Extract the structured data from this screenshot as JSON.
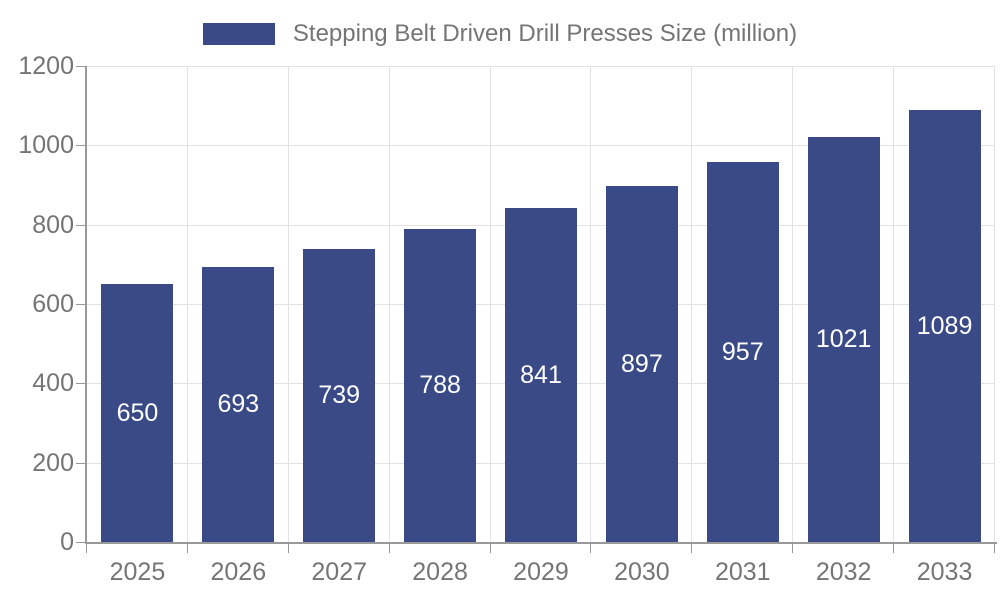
{
  "chart_data": {
    "type": "bar",
    "title": "Stepping Belt Driven Drill Presses Size (million)",
    "categories": [
      "2025",
      "2026",
      "2027",
      "2028",
      "2029",
      "2030",
      "2031",
      "2032",
      "2033"
    ],
    "values": [
      650,
      693,
      739,
      788,
      841,
      897,
      957,
      1021,
      1089
    ],
    "series_name": "Stepping Belt Driven Drill Presses Size (million)",
    "xlabel": "",
    "ylabel": "",
    "ylim": [
      0,
      1200
    ],
    "ytick_step": 200,
    "yticks": [
      0,
      200,
      400,
      600,
      800,
      1000,
      1200
    ],
    "grid": true,
    "legend_position": "top-center",
    "value_label_position": "inside-center"
  },
  "colors": {
    "bar": "#394A87",
    "axis": "#999999",
    "grid": "#E3E3E3",
    "tick_label": "#757575",
    "value_label": "#FFFFFF",
    "legend_text": "#757575"
  }
}
